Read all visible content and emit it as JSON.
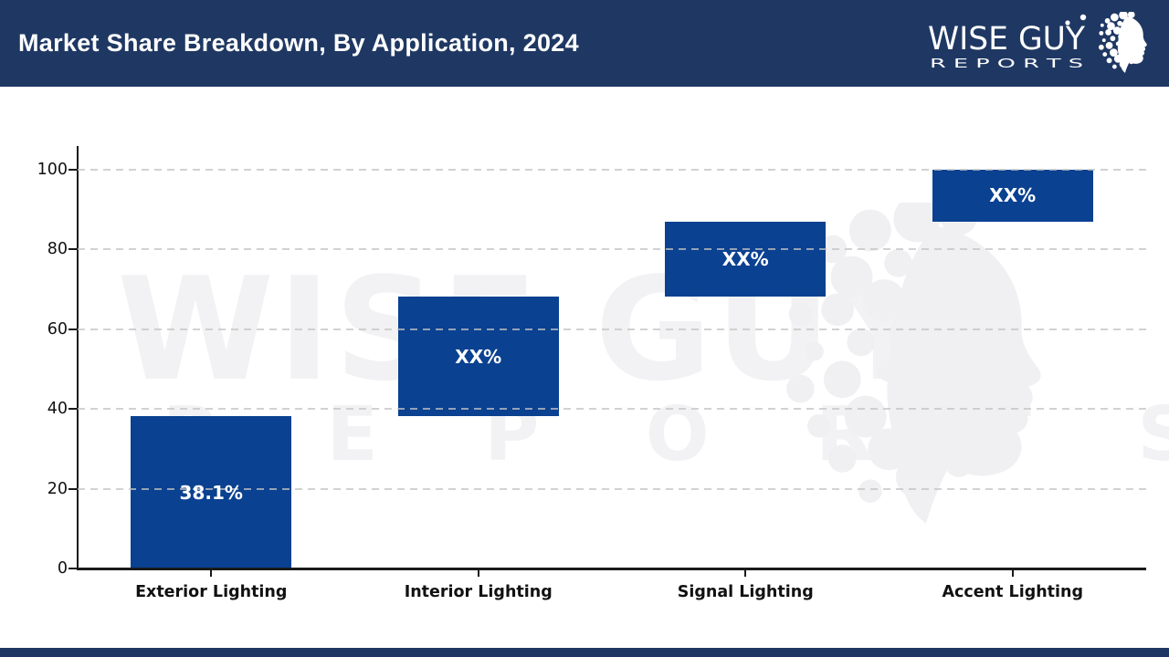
{
  "header": {
    "title": "Market Share Breakdown, By Application, 2024",
    "logo": {
      "wordmark": "WISE GUY",
      "subtext": "R E P O R T S"
    }
  },
  "watermark": {
    "wordmark": "WISE GUY",
    "subtext": "R E P O R T S"
  },
  "chart_data": {
    "type": "bar",
    "variant": "floating-waterfall",
    "title": "Market Share Breakdown, By Application, 2024",
    "categories": [
      "Exterior Lighting",
      "Interior Lighting",
      "Signal Lighting",
      "Accent Lighting"
    ],
    "bars": [
      {
        "category": "Exterior Lighting",
        "start": 0,
        "end": 38.1,
        "label": "38.1%"
      },
      {
        "category": "Interior Lighting",
        "start": 38.1,
        "end": 68.1,
        "label": "XX%"
      },
      {
        "category": "Signal Lighting",
        "start": 68.1,
        "end": 86.9,
        "label": "XX%"
      },
      {
        "category": "Accent Lighting",
        "start": 86.9,
        "end": 100,
        "label": "XX%"
      }
    ],
    "ylim": [
      0,
      100
    ],
    "yticks": [
      0,
      20,
      40,
      60,
      80,
      100
    ],
    "grid": {
      "horizontal": true,
      "style": "dashed"
    },
    "legend": "none"
  },
  "colors": {
    "header_bg": "#1f3863",
    "footer_bg": "#1f3863",
    "bar": "#0a4191",
    "axis": "#1a1a1a",
    "grid": "#c3c3c3",
    "watermark": "#f2f2f4",
    "title_text": "#ffffff"
  }
}
